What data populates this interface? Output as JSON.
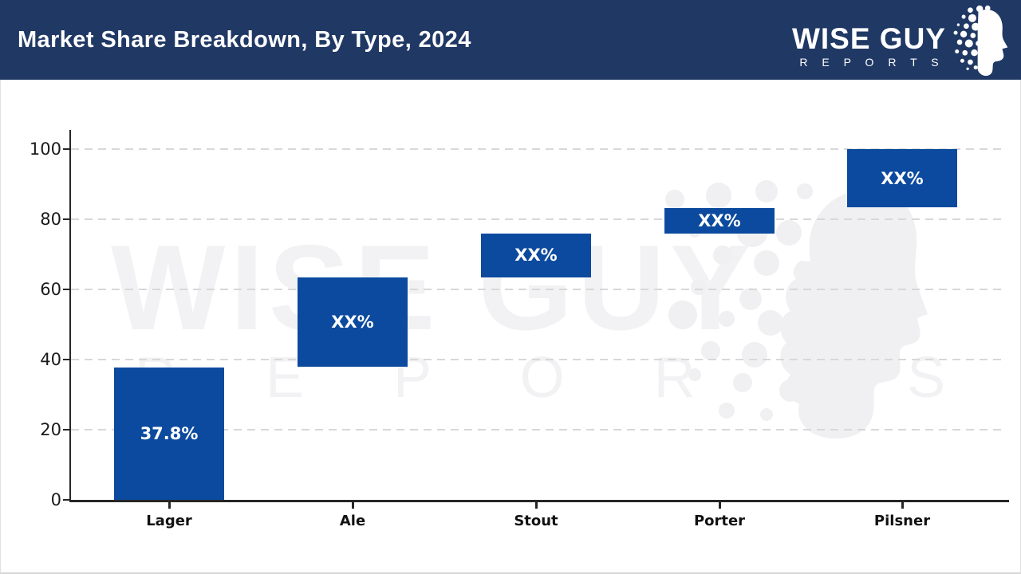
{
  "header": {
    "title": "Market Share Breakdown, By Type, 2024",
    "bg_color": "#203864",
    "logo": {
      "line1": "WISE GUY",
      "line2": "R E P O R T S"
    }
  },
  "watermark": {
    "line1": "WISE GUY",
    "line2": "R E P O R T S"
  },
  "chart_data": {
    "type": "bar",
    "variant": "waterfall",
    "title": "Market Share Breakdown, By Type, 2024",
    "categories": [
      "Lager",
      "Ale",
      "Stout",
      "Porter",
      "Pilsner"
    ],
    "segments": [
      {
        "category": "Lager",
        "start": 0,
        "end": 37.8,
        "label": "37.8%"
      },
      {
        "category": "Ale",
        "start": 38.0,
        "end": 63.5,
        "label": "XX%"
      },
      {
        "category": "Stout",
        "start": 63.5,
        "end": 75.9,
        "label": "XX%"
      },
      {
        "category": "Porter",
        "start": 76.0,
        "end": 83.3,
        "label": "XX%"
      },
      {
        "category": "Pilsner",
        "start": 83.4,
        "end": 100.0,
        "label": "XX%"
      }
    ],
    "yticks": [
      0,
      20,
      40,
      60,
      80,
      100
    ],
    "ylim": [
      0,
      105.5
    ],
    "bar_color": "#0b4a9e",
    "label_color": "#ffffff",
    "grid": "horizontal-dashed",
    "gridline_color": "#d8d8d8",
    "legend": "none",
    "xlabel": "",
    "ylabel": ""
  }
}
